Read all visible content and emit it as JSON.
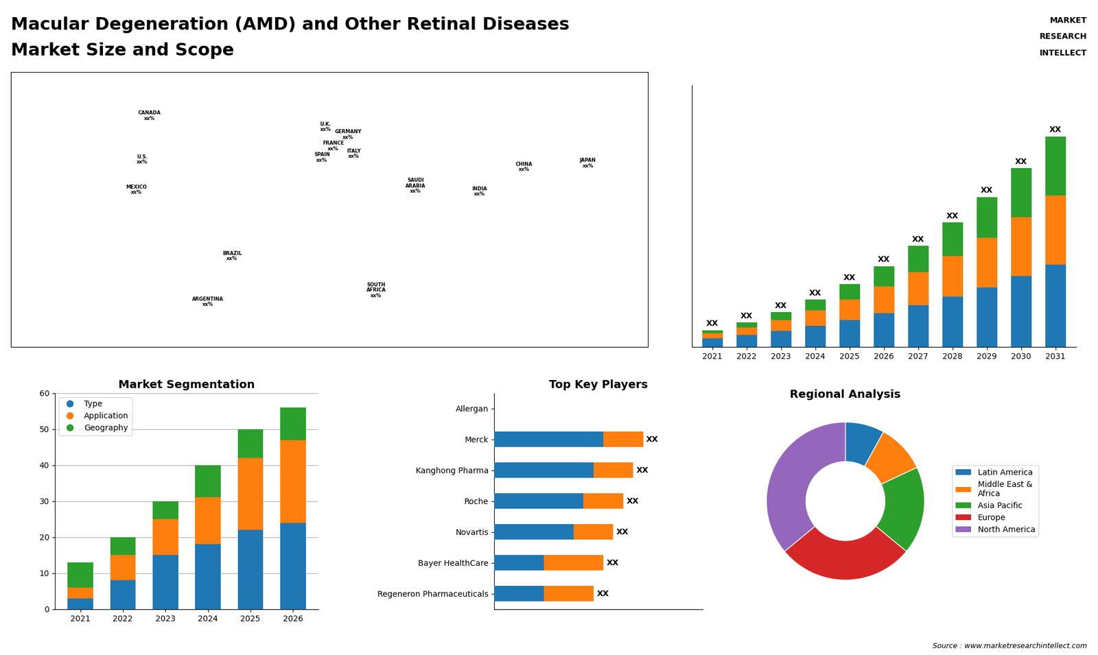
{
  "title": "Macular Degeneration (AMD) and Other Retinal Diseases",
  "subtitle": "Market Size and Scope",
  "annotations": [
    "MARKET",
    "RESEARCH",
    "INTELLECT",
    "Source : www.marketresearchintellect.com"
  ],
  "chart_data": [
    {
      "type": "map",
      "xlim": [
        -170,
        170
      ],
      "ylim": [
        -60,
        85
      ],
      "tick_labels": false,
      "annotations": [
        {
          "text": "U.S.\nxx%",
          "x": -100,
          "y": 39
        },
        {
          "text": "CANADA\nxx%",
          "x": -96,
          "y": 62
        },
        {
          "text": "MEXICO\nxx%",
          "x": -103,
          "y": 23
        },
        {
          "text": "BRAZIL\nxx%",
          "x": -52,
          "y": -12
        },
        {
          "text": "ARGENTINA\nxx%",
          "x": -65,
          "y": -36
        },
        {
          "text": "U.K.\nxx%",
          "x": -2,
          "y": 56
        },
        {
          "text": "FRANCE\nxx%",
          "x": 2,
          "y": 46
        },
        {
          "text": "SPAIN\nxx%",
          "x": -4,
          "y": 40
        },
        {
          "text": "GERMANY\nxx%",
          "x": 10,
          "y": 52
        },
        {
          "text": "ITALY\nxx%",
          "x": 13,
          "y": 42
        },
        {
          "text": "SAUDI\nARABIA\nxx%",
          "x": 46,
          "y": 25
        },
        {
          "text": "SOUTH\nAFRICA\nxx%",
          "x": 25,
          "y": -30
        },
        {
          "text": "CHINA\nxx%",
          "x": 104,
          "y": 35
        },
        {
          "text": "INDIA\nxx%",
          "x": 80,
          "y": 22
        },
        {
          "text": "JAPAN\nxx%",
          "x": 138,
          "y": 37
        }
      ]
    },
    {
      "type": "bar",
      "stacked": true,
      "categories": [
        "2021",
        "2022",
        "2023",
        "2024",
        "2025",
        "2026",
        "2027",
        "2028",
        "2029",
        "2030",
        "2031"
      ],
      "series": [
        {
          "values": [
            1.0,
            1.4,
            1.9,
            2.5,
            3.2,
            4.0,
            4.9,
            5.9,
            7.0,
            8.3,
            9.7
          ]
        },
        {
          "values": [
            0.6,
            0.9,
            1.3,
            1.8,
            2.4,
            3.1,
            3.9,
            4.8,
            5.8,
            6.9,
            8.1
          ]
        },
        {
          "values": [
            0.4,
            0.6,
            0.9,
            1.3,
            1.8,
            2.4,
            3.1,
            3.9,
            4.8,
            5.8,
            6.9
          ]
        }
      ],
      "value_labels": [
        "XX",
        "XX",
        "XX",
        "XX",
        "XX",
        "XX",
        "XX",
        "XX",
        "XX",
        "XX",
        "XX"
      ],
      "ylim": [
        0,
        30.7
      ],
      "yticks": [],
      "tick_labels": "x"
    },
    {
      "type": "bar",
      "stacked": true,
      "title": "Market Segmentation",
      "categories": [
        "2021",
        "2022",
        "2023",
        "2024",
        "2025",
        "2026"
      ],
      "series": [
        {
          "name": "Type",
          "values": [
            3,
            8,
            15,
            18,
            22,
            24
          ]
        },
        {
          "name": "Application",
          "values": [
            3,
            7,
            10,
            13,
            20,
            23
          ]
        },
        {
          "name": "Geography",
          "values": [
            7,
            5,
            5,
            9,
            8,
            9
          ]
        }
      ],
      "ylim": [
        0,
        60
      ],
      "yticks": [
        0,
        10,
        20,
        30,
        40,
        50,
        60
      ],
      "grid": true,
      "legend": "upper left"
    },
    {
      "type": "bar",
      "orientation": "horizontal",
      "stacked": true,
      "title": "Top Key Players",
      "categories": [
        "Allergan",
        "Merck",
        "Kanghong Pharma",
        "Roche",
        "Novartis",
        "Bayer HealthCare",
        "Regeneron Pharmaceuticals"
      ],
      "series": [
        {
          "values": [
            0.0,
            5.5,
            5.0,
            4.5,
            4.0,
            2.5,
            2.5
          ]
        },
        {
          "values": [
            0.0,
            2.0,
            2.0,
            2.0,
            2.0,
            3.0,
            2.5
          ]
        }
      ],
      "value_labels": [
        null,
        "XX",
        "XX",
        "XX",
        "XX",
        "XX",
        "XX"
      ],
      "xlim": [
        0,
        10.5
      ],
      "xticks": [],
      "tick_labels": "y"
    },
    {
      "type": "pie",
      "title": "Regional Analysis",
      "categories": [
        "Latin America",
        "Middle East &\nAfrica",
        "Asia Pacific",
        "Europe",
        "North America"
      ],
      "values": [
        8,
        10,
        18,
        28,
        36
      ],
      "legend": "center left"
    }
  ]
}
